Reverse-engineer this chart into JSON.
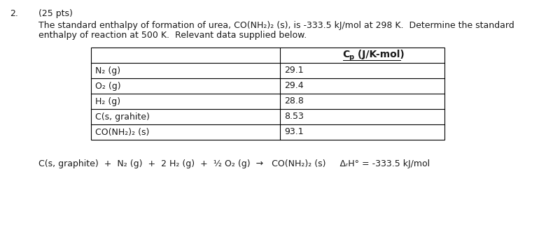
{
  "question_number": "2.",
  "pts": "(25 pts)",
  "line1": "The standard enthalpy of formation of urea, CO(NH₂)₂ (s), is -333.5 kJ/mol at 298 K.  Determine the standard",
  "line2": "enthalpy of reaction at 500 K.  Relevant data supplied below.",
  "table_col1_header": "",
  "table_col2_header_main": "C",
  "table_col2_header_sub": "p",
  "table_col2_header_rest": " (J/K-mol)",
  "table_rows": [
    [
      "N₂ (g)",
      "29.1"
    ],
    [
      "O₂ (g)",
      "29.4"
    ],
    [
      "H₂ (g)",
      "28.8"
    ],
    [
      "C(s, grahite)",
      "8.53"
    ],
    [
      "CO(NH₂)₂ (s)",
      "93.1"
    ]
  ],
  "eq_part1": "C(s, graphite)  +  N",
  "eq_part2": "2",
  "eq_part3": " (g)  +  2 H",
  "eq_part4": "2",
  "eq_part5": " (g)  +  ½ O",
  "eq_part6": "2",
  "eq_part7": " (g)  →   CO(NH",
  "eq_part8": "2",
  "eq_part9": ")",
  "eq_part10": "2",
  "eq_part11": " (s)     Δ",
  "eq_part12": "r",
  "eq_part13": "H° = -333.5 kJ/mol",
  "bg_color": "#ffffff",
  "text_color": "#1a1a1a",
  "font_size": 9.0
}
